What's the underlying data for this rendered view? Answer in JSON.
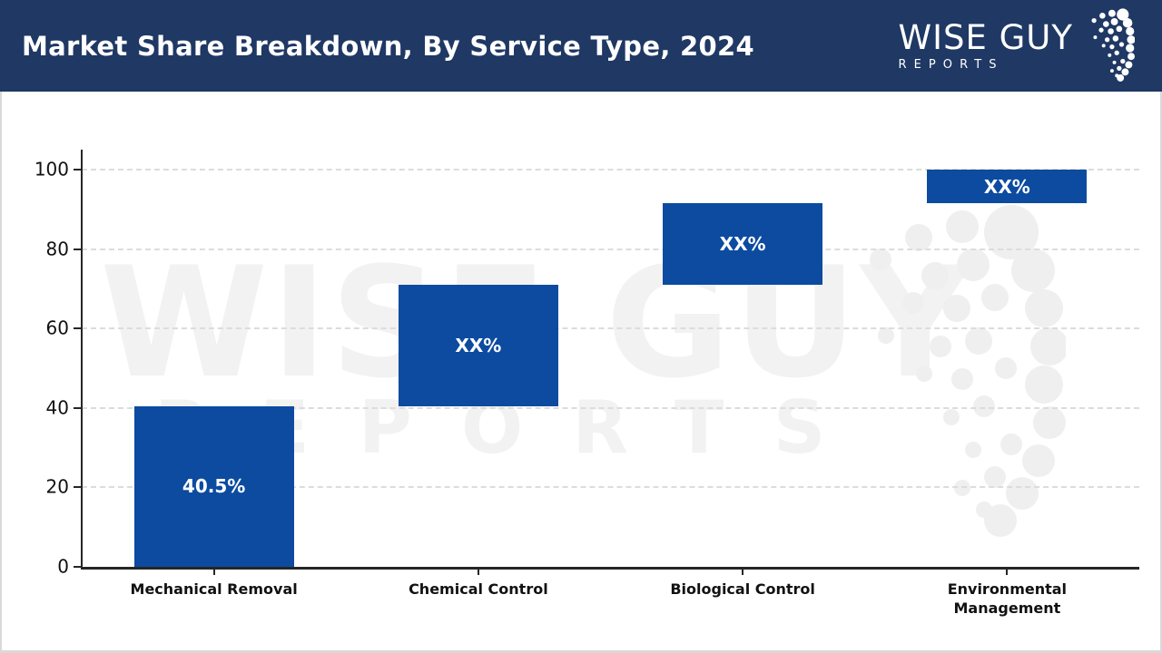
{
  "header": {
    "logo": {
      "line1": "WISE GUY",
      "line2": "REPORTS"
    }
  },
  "watermark": {
    "line1": "WISE GUY",
    "line2": "REPORTS"
  },
  "colors": {
    "header_bg": "#1f3864",
    "bar": "#0c4ba0",
    "bar_label": "#ffffff",
    "grid": "#dcdcdc",
    "axis": "#262626",
    "title_text": "#ffffff",
    "watermark": "#f2f2f2"
  },
  "chart_data": {
    "type": "bar",
    "subtype": "waterfall",
    "title": "Market Share Breakdown, By Service Type, 2024",
    "xlabel": "",
    "ylabel": "",
    "ylim": [
      0,
      100
    ],
    "yticks": [
      0,
      20,
      40,
      60,
      80,
      100
    ],
    "grid": "horizontal-dashed",
    "legend": "none",
    "categories": [
      "Mechanical Removal",
      "Chemical Control",
      "Biological Control",
      "Environmental Management"
    ],
    "segments": [
      {
        "category": "Mechanical Removal",
        "start": 0,
        "end": 40.5,
        "label": "40.5%"
      },
      {
        "category": "Chemical Control",
        "start": 40.5,
        "end": 71,
        "label": "XX%"
      },
      {
        "category": "Biological Control",
        "start": 71,
        "end": 91.5,
        "label": "XX%"
      },
      {
        "category": "Environmental Management",
        "start": 91.5,
        "end": 100,
        "label": "XX%"
      }
    ]
  }
}
